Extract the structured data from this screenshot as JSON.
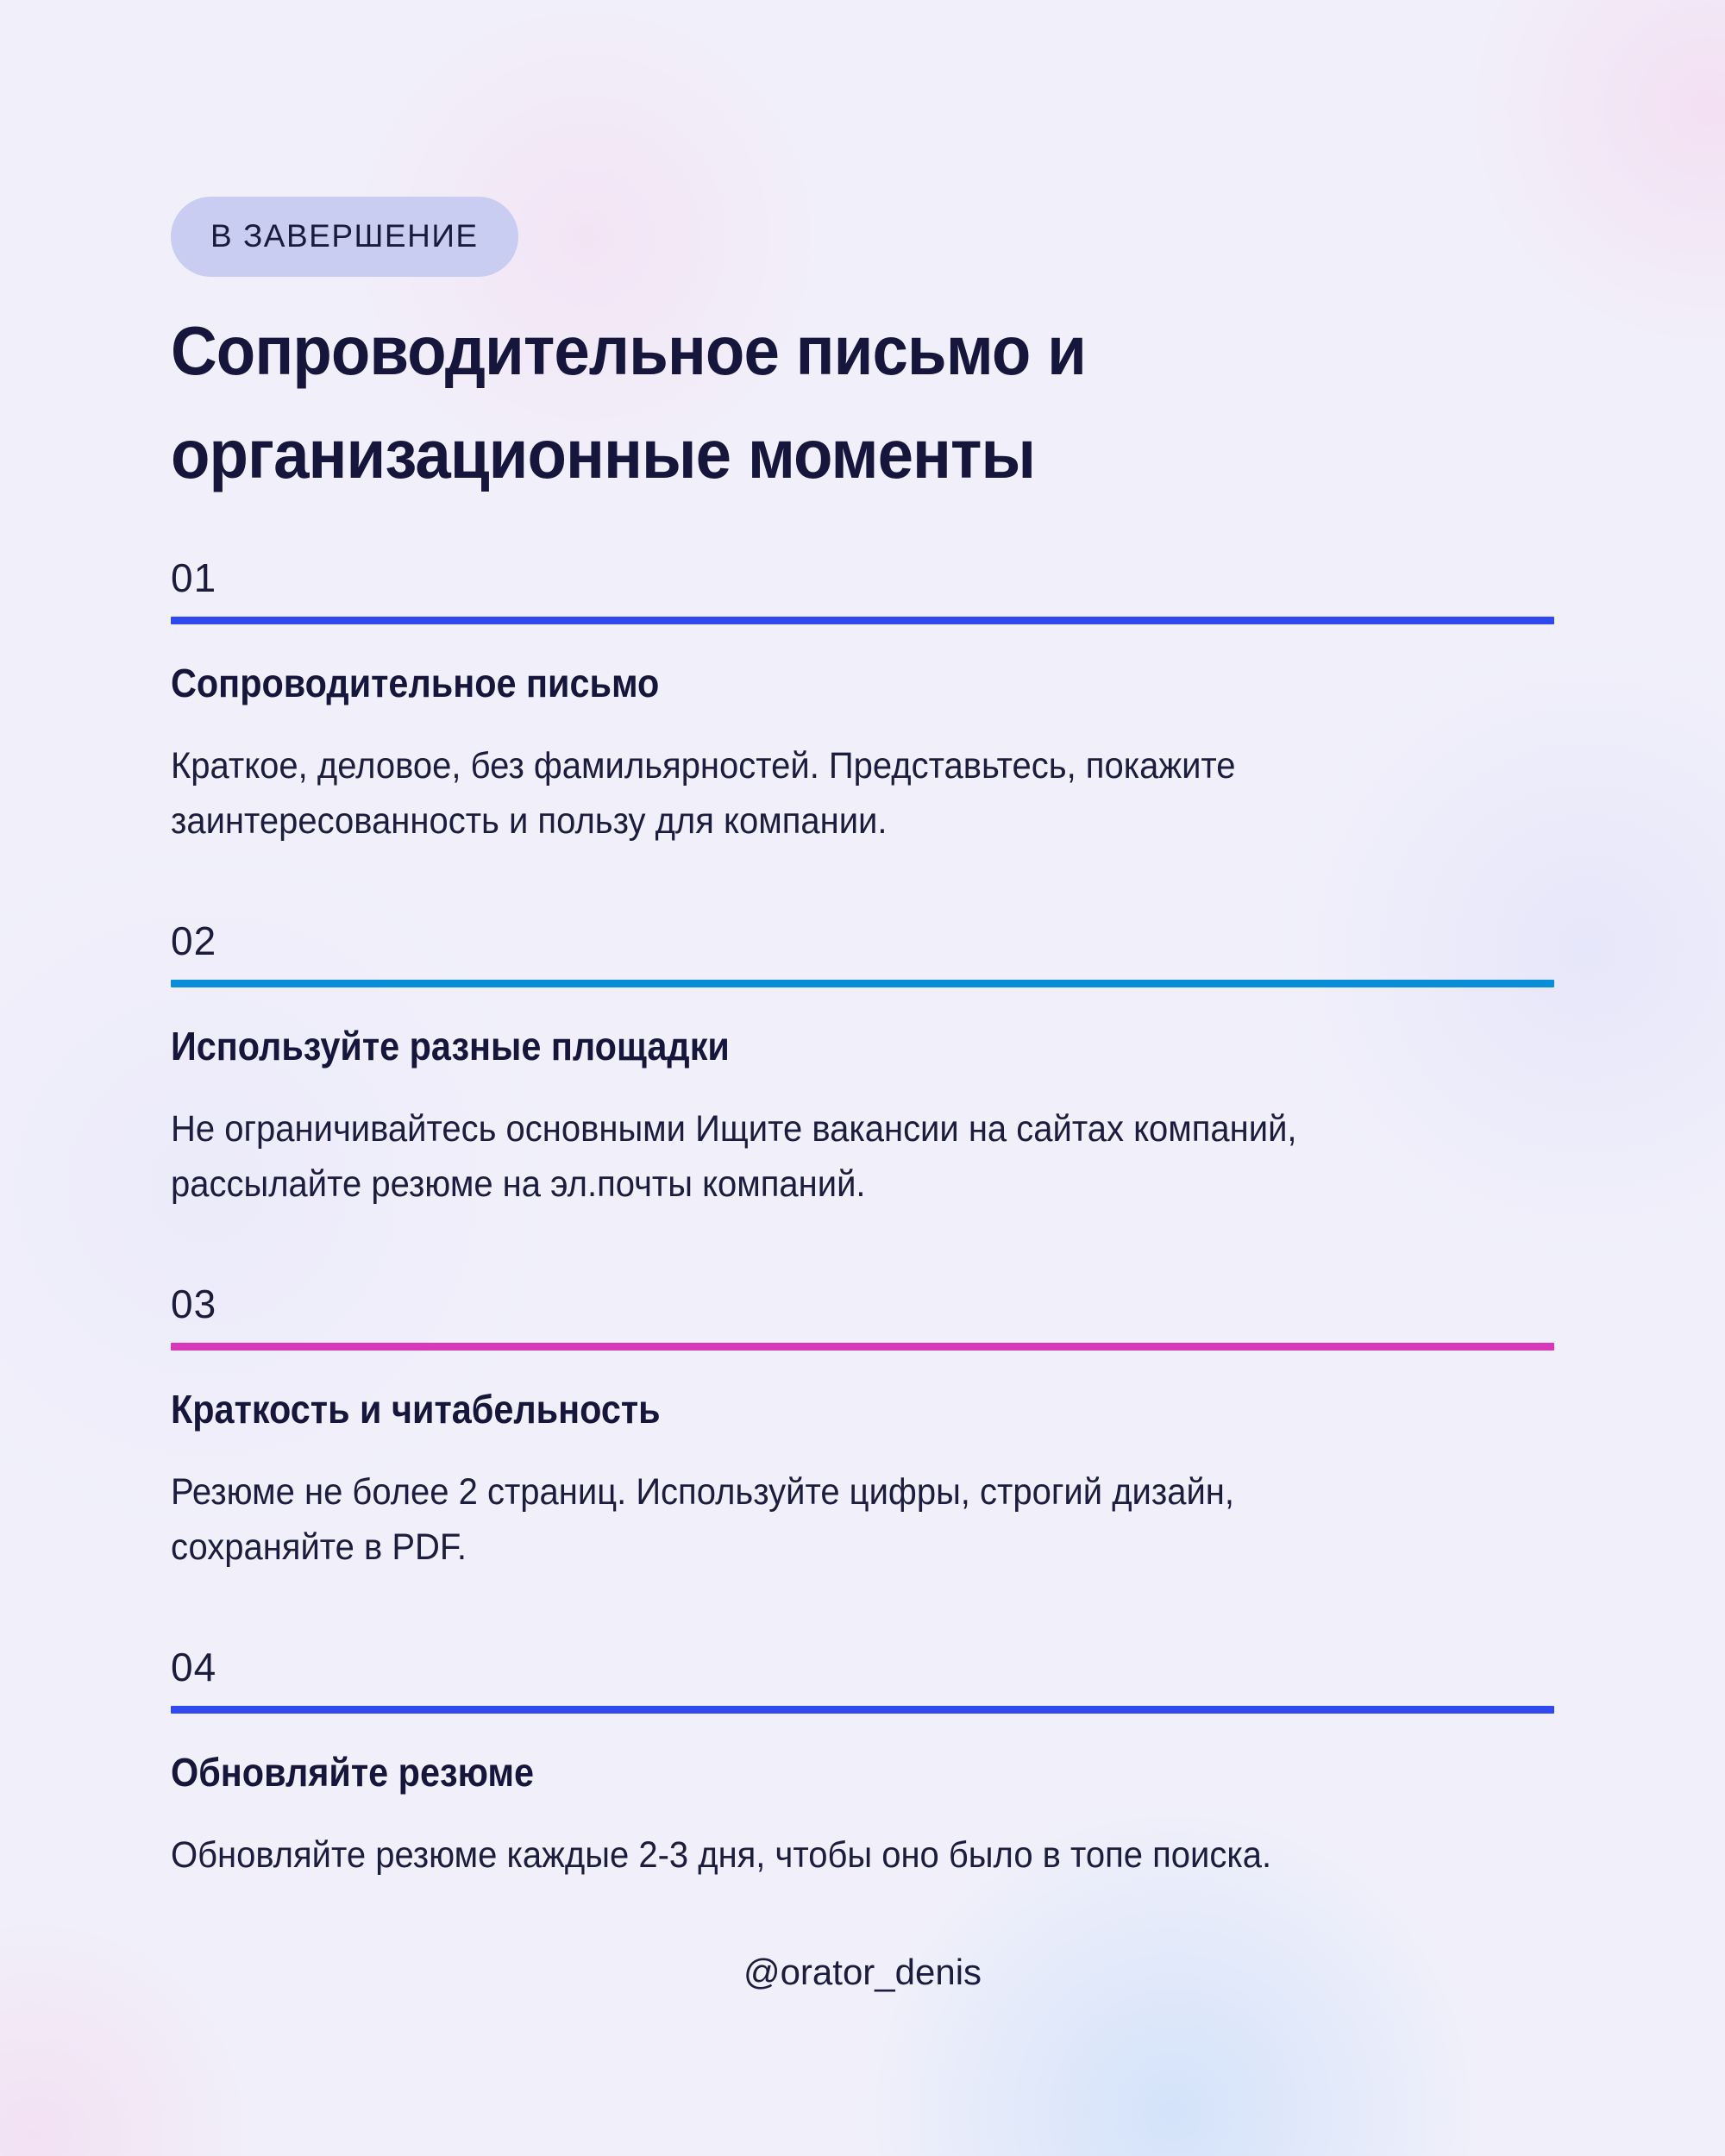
{
  "page": {
    "badge": "В ЗАВЕРШЕНИЕ",
    "title": "Сопроводительное письмо и организационные моменты",
    "footer_handle": "@orator_denis"
  },
  "colors": {
    "background": "#f1f0fa",
    "badge_bg": "#c8cdf1",
    "text_dark": "#16163c",
    "accent_blue": "#2f49ee",
    "accent_cyan": "#088dd9",
    "accent_magenta": "#d938b8"
  },
  "sections": [
    {
      "number": "01",
      "divider_color": "#2f49ee",
      "heading": "Сопроводительное письмо",
      "body": "Краткое, деловое, без фамильярностей. Представьтесь, покажите заинтересованность и пользу для компании."
    },
    {
      "number": "02",
      "divider_color": "#088dd9",
      "heading": "Используйте разные площадки",
      "body": "Не ограничивайтесь основными Ищите вакансии на сайтах компаний, рассылайте резюме на эл.почты компаний."
    },
    {
      "number": "03",
      "divider_color": "#d938b8",
      "heading": "Краткость и читабельность",
      "body": "Резюме не более 2 страниц. Используйте цифры, строгий дизайн, сохраняйте в PDF."
    },
    {
      "number": "04",
      "divider_color": "#2f49ee",
      "heading": "Обновляйте резюме",
      "body": "Обновляйте резюме каждые 2-3 дня, чтобы оно было в топе поиска."
    }
  ]
}
